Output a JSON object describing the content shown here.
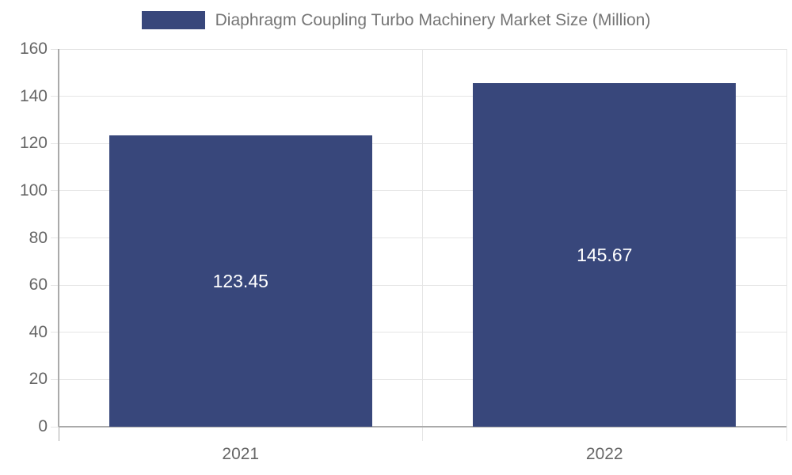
{
  "legend": {
    "label": "Diaphragm Coupling Turbo Machinery Market Size (Million)"
  },
  "colors": {
    "bar": "#38477B",
    "legend_text": "#757575",
    "axis_label": "#666666",
    "gridline": "#E5E5E5",
    "axis_line": "#AAAAAA",
    "data_label": "#FFFFFF",
    "background": "#FFFFFF"
  },
  "chart_data": {
    "type": "bar",
    "categories": [
      "2021",
      "2022"
    ],
    "values": [
      123.45,
      145.67
    ],
    "data_labels": [
      "123.45",
      "145.67"
    ],
    "title": "Diaphragm Coupling Turbo Machinery Market Size (Million)",
    "xlabel": "",
    "ylabel": "",
    "ylim": [
      0,
      160
    ],
    "yticks": [
      0,
      20,
      40,
      60,
      80,
      100,
      120,
      140,
      160
    ],
    "grid": true,
    "legend_position": "top-center",
    "bar_label_position": "center-inside"
  }
}
